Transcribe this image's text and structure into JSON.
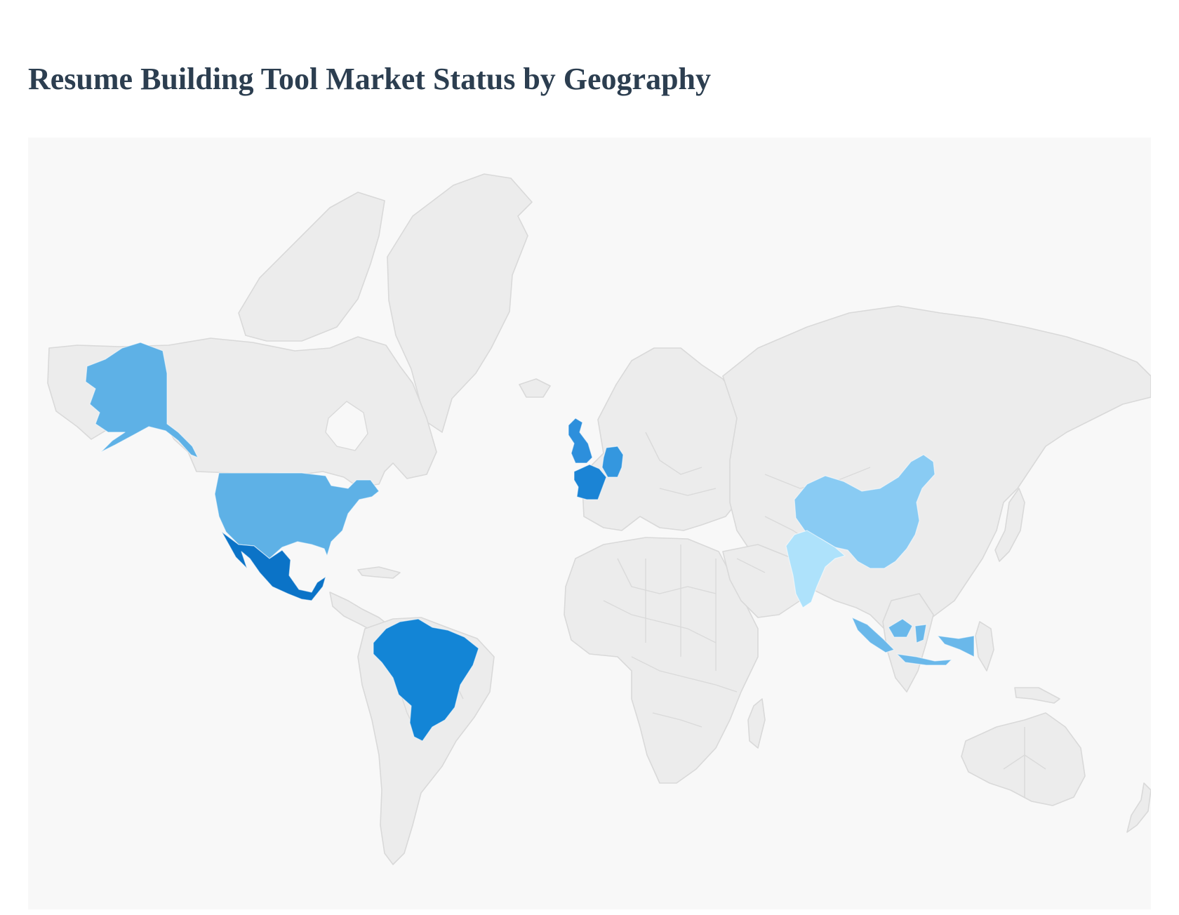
{
  "page": {
    "title": "Resume Building Tool Market Status by Geography"
  },
  "map": {
    "background_color": "#f8f8f8",
    "land_color": "#ececec",
    "border_color": "#d9d9d9",
    "highlighted_countries": [
      {
        "name": "United States",
        "fill": "#5eb1e6"
      },
      {
        "name": "Mexico",
        "fill": "#0b73c7"
      },
      {
        "name": "Brazil",
        "fill": "#1385d6"
      },
      {
        "name": "United Kingdom",
        "fill": "#2d8fdc"
      },
      {
        "name": "France",
        "fill": "#1b84d5"
      },
      {
        "name": "Germany",
        "fill": "#3497df"
      },
      {
        "name": "China",
        "fill": "#89cbf3"
      },
      {
        "name": "India",
        "fill": "#aee2fb"
      },
      {
        "name": "Indonesia",
        "fill": "#6ab8ea"
      }
    ]
  }
}
